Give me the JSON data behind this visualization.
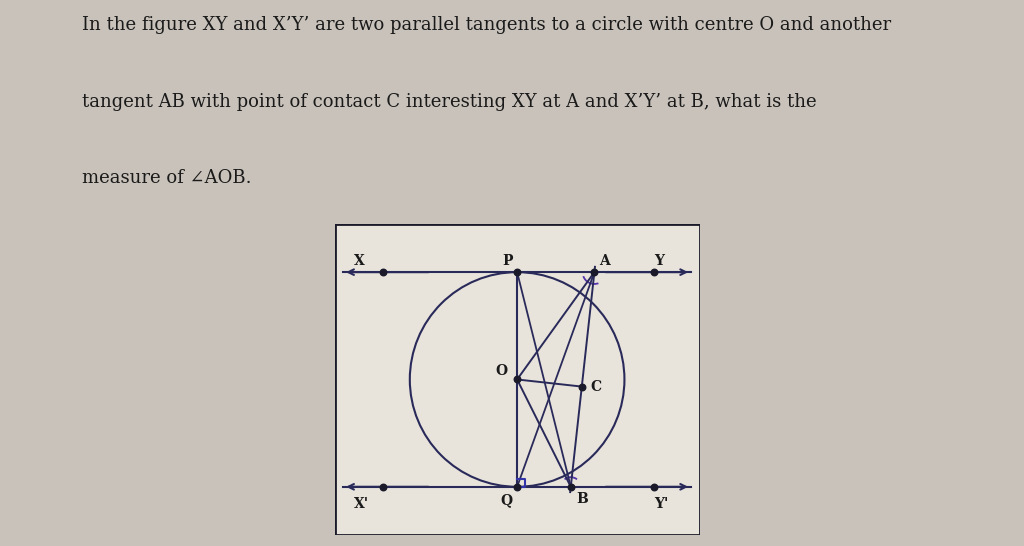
{
  "bg_color": "#e8e4dc",
  "page_bg": "#c8c2ba",
  "text_color": "#1a1a1a",
  "title_line1": "In the figure XY and X’Y’ are two parallel tangents to a circle with centre O and another",
  "title_line2": "tangent AB with point of contact C interesting XY at A and X’Y’ at B, what is the",
  "title_line3": "measure of ∠AOB.",
  "circle_color": "#2a2a5a",
  "line_color": "#2a2a5a",
  "point_color": "#1a1a2a",
  "angle_arc_color": "#5533aa",
  "right_angle_color": "#3333aa",
  "label_fontsize": 10,
  "box_color": "#1a1a2a",
  "title_fontsize": 13
}
